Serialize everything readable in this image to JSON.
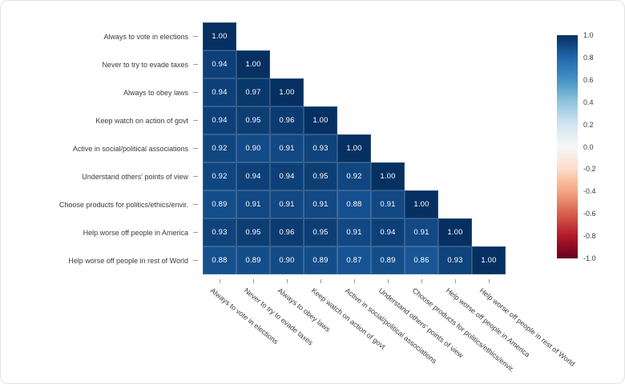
{
  "figure": {
    "background": "#ffffff",
    "text_color": "#3a3a3a",
    "tick_color": "#9a9a9a",
    "cell_text_color": "#ffffff"
  },
  "chart_data": {
    "type": "heatmap",
    "subtype": "correlation-matrix-lower-triangle",
    "title": "",
    "xlabel": "",
    "ylabel": "",
    "annotated": true,
    "grid": false,
    "categories": [
      "Always to vote in elections",
      "Never to try to evade taxes",
      "Always to obey laws",
      "Keep watch on action of govt",
      "Active in social/political associations",
      "Understand others' points of view",
      "Choose products for politics/ethics/envir.",
      "Help worse off people in America",
      "Help worse off people in rest of World"
    ],
    "matrix": [
      [
        1.0
      ],
      [
        0.94,
        1.0
      ],
      [
        0.94,
        0.97,
        1.0
      ],
      [
        0.94,
        0.95,
        0.96,
        1.0
      ],
      [
        0.92,
        0.9,
        0.91,
        0.93,
        1.0
      ],
      [
        0.92,
        0.94,
        0.94,
        0.95,
        0.92,
        1.0
      ],
      [
        0.89,
        0.91,
        0.91,
        0.91,
        0.88,
        0.91,
        1.0
      ],
      [
        0.93,
        0.95,
        0.96,
        0.95,
        0.91,
        0.94,
        0.91,
        1.0
      ],
      [
        0.88,
        0.89,
        0.9,
        0.89,
        0.87,
        0.89,
        0.86,
        0.93,
        1.0
      ]
    ],
    "value_format_decimals": 2,
    "vmin": -1.0,
    "vmax": 1.0,
    "colormap": {
      "name": "RdBu",
      "stops": [
        "#67001f",
        "#b2182b",
        "#d6604d",
        "#f4a582",
        "#fddbc7",
        "#f7f7f7",
        "#d1e5f0",
        "#92c5de",
        "#4393c3",
        "#2166ac",
        "#053061"
      ]
    },
    "colorbar": {
      "position": "right",
      "tick_labels": [
        "1.0",
        "0.8",
        "0.6",
        "0.4",
        "0.2",
        "0.0",
        "-0.2",
        "-0.4",
        "-0.6",
        "-0.8",
        "-1.0"
      ]
    }
  }
}
